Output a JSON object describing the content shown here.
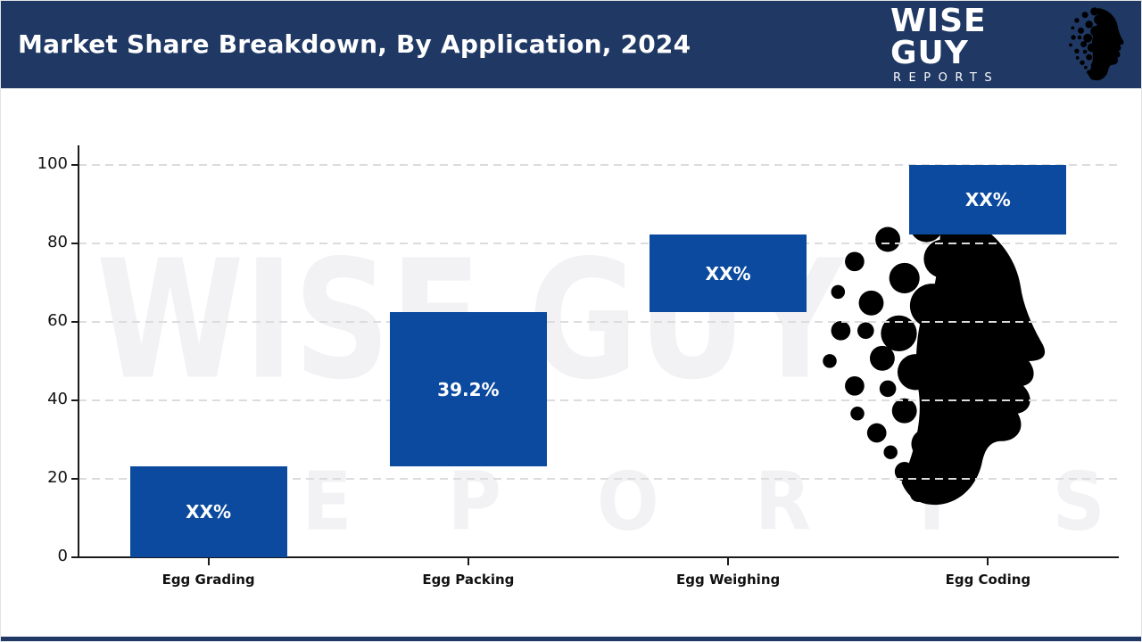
{
  "header": {
    "title": "Market Share Breakdown, By Application, 2024",
    "logo": {
      "line1": "WISE GUY",
      "line2": "REPORTS"
    }
  },
  "watermark": {
    "line1": "WISE GUY",
    "line2": "REPORTS"
  },
  "chart_data": {
    "type": "bar",
    "subtype": "waterfall",
    "title": "Market Share Breakdown, By Application, 2024",
    "categories": [
      "Egg Grading",
      "Egg Packing",
      "Egg Weighing",
      "Egg Coding"
    ],
    "segments": [
      {
        "category": "Egg Grading",
        "start": 0,
        "end": 23.2,
        "label": "XX%"
      },
      {
        "category": "Egg Packing",
        "start": 23.2,
        "end": 62.4,
        "label": "39.2%"
      },
      {
        "category": "Egg Weighing",
        "start": 62.4,
        "end": 82.3,
        "label": "XX%"
      },
      {
        "category": "Egg Coding",
        "start": 82.3,
        "end": 100,
        "label": "XX%"
      }
    ],
    "y_ticks": [
      0,
      20,
      40,
      60,
      80,
      100
    ],
    "ylim": [
      0,
      105
    ],
    "xlabel": "",
    "ylabel": "",
    "grid": "horizontal-dashed",
    "legend": "none"
  },
  "colors": {
    "navy": "#1f3864",
    "bar": "#0b4a9e",
    "grid": "#dcdcdc",
    "axis": "#1a1a1a",
    "watermark": "#f2f2f5",
    "title_text": "#ffffff",
    "bar_label_text": "#ffffff"
  }
}
